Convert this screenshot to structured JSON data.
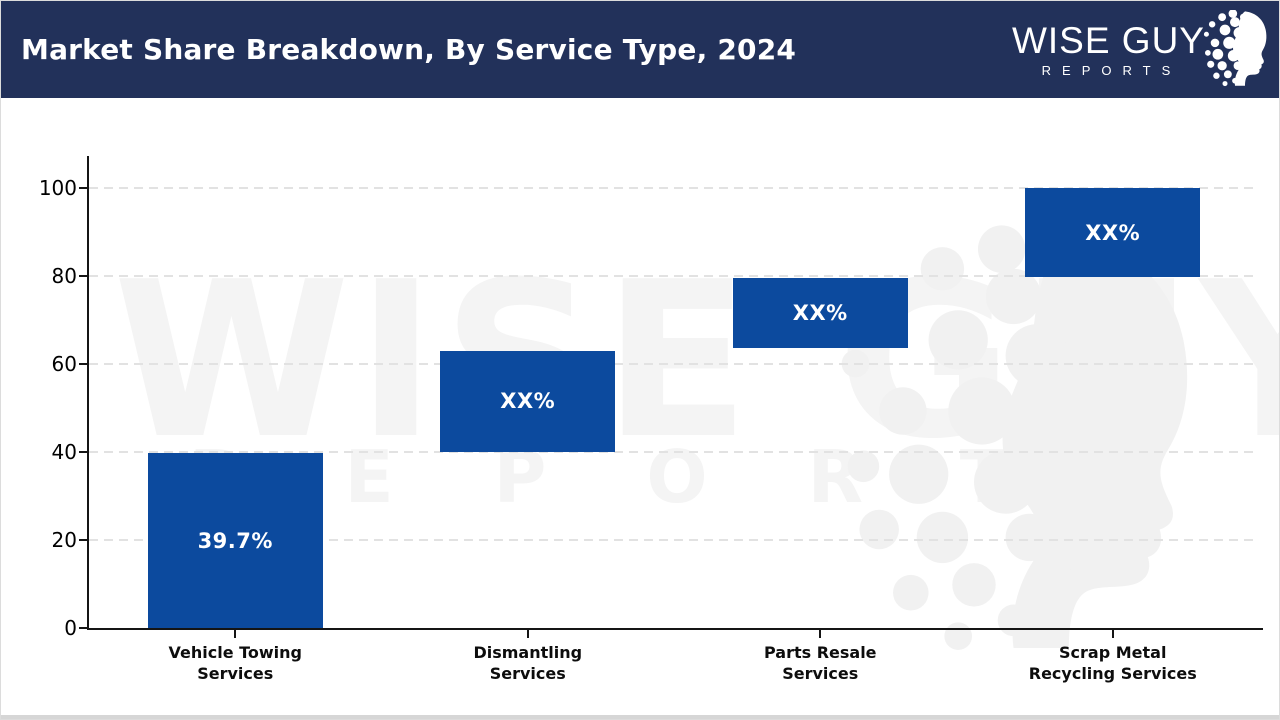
{
  "header": {
    "title": "Market Share Breakdown, By Service Type, 2024",
    "bg_color": "#22315a",
    "logo_line1": "WISE GUY",
    "logo_line2": "REPORTS"
  },
  "watermark": {
    "line1": "WISE GUY",
    "line2": "REPORTS"
  },
  "chart_data": {
    "type": "bar",
    "variant": "waterfall",
    "title": "Market Share Breakdown, By Service Type, 2024",
    "xlabel": "",
    "ylabel": "",
    "ylim": [
      0,
      107
    ],
    "y_ticks": [
      0,
      20,
      40,
      60,
      80,
      100
    ],
    "grid": "horizontal-dashed",
    "bar_color": "#0c4a9e",
    "grid_color": "#e2e2e2",
    "categories": [
      {
        "line1": "Vehicle Towing",
        "line2": "Services"
      },
      {
        "line1": "Dismantling",
        "line2": "Services"
      },
      {
        "line1": "Parts Resale",
        "line2": "Services"
      },
      {
        "line1": "Scrap Metal",
        "line2": "Recycling Services"
      }
    ],
    "segments": [
      {
        "start": 0,
        "end": 39.7,
        "label": "39.7%"
      },
      {
        "start": 40,
        "end": 63,
        "label": "XX%"
      },
      {
        "start": 63.5,
        "end": 79.5,
        "label": "XX%"
      },
      {
        "start": 79.7,
        "end": 99.8,
        "label": "XX%"
      }
    ]
  }
}
